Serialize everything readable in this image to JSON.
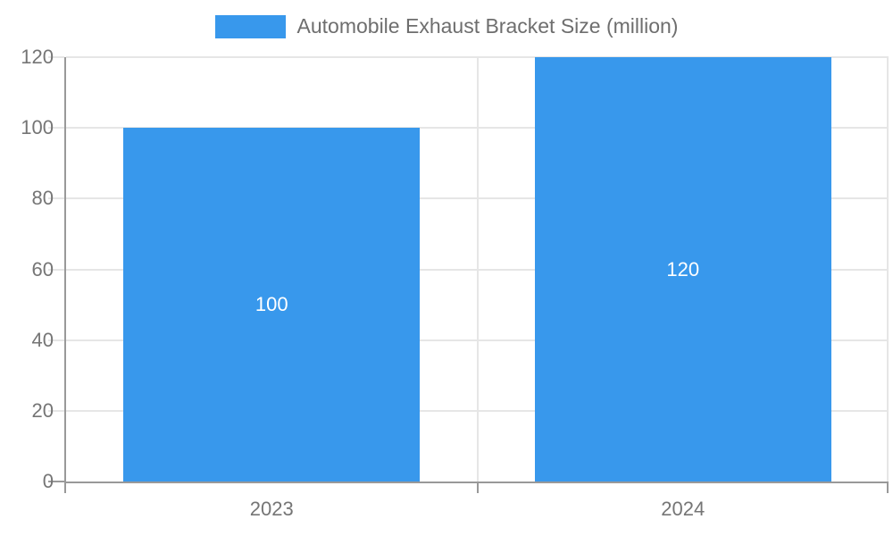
{
  "chart_data": {
    "type": "bar",
    "legend": "Automobile Exhaust Bracket Size (million)",
    "legend_position": "top",
    "categories": [
      "2023",
      "2024"
    ],
    "values": [
      100,
      120
    ],
    "bar_labels": [
      "100",
      "120"
    ],
    "ylim": [
      0,
      120
    ],
    "yticks": [
      0,
      20,
      40,
      60,
      80,
      100,
      120
    ],
    "grid": true,
    "colors": {
      "bar": "#3898ec",
      "gridline": "#e6e6e6",
      "axis": "#999999",
      "tick_text": "#757575",
      "legend_text": "#6e6e6e",
      "bar_label_text": "#ffffff"
    }
  }
}
